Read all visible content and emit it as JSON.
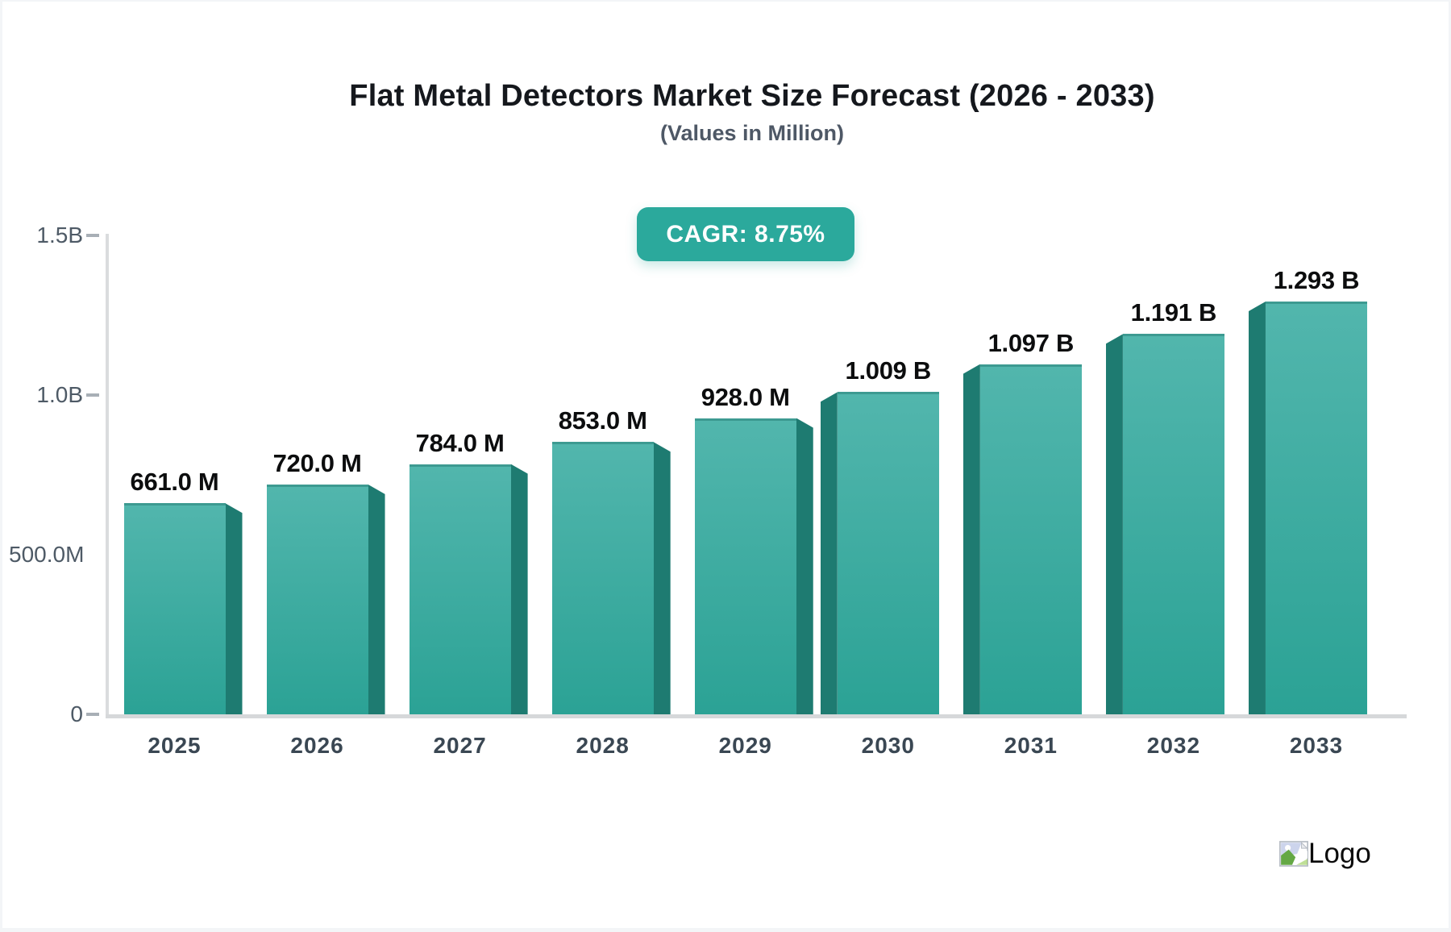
{
  "header": {
    "title": "Flat Metal Detectors Market Size Forecast (2026 - 2033)",
    "subtitle": "(Values in Million)"
  },
  "badge": {
    "label": "CAGR: 8.75%"
  },
  "footer": {
    "logo_text": "Logo",
    "logo_icon": "broken-image-icon"
  },
  "colors": {
    "accent": "#2ba99c",
    "bar_face_top": "#52b6ad",
    "bar_face_bottom": "#2ba295",
    "bar_side": "#1e7b71",
    "axis_line": "#d8dadc",
    "tick": "#a8afb6",
    "y_label_text": "#4e5a66",
    "x_label_text": "#3a4753",
    "value_label_text": "#0c0d0e",
    "title_text": "#15181d",
    "subtitle_text": "#4e5866"
  },
  "chart_data": {
    "type": "bar",
    "title": "Flat Metal Detectors Market Size Forecast (2026 - 2033)",
    "subtitle": "(Values in Million)",
    "cagr": "8.75%",
    "categories": [
      "2025",
      "2026",
      "2027",
      "2028",
      "2029",
      "2030",
      "2031",
      "2032",
      "2033"
    ],
    "values_millions": [
      661,
      720,
      784,
      853,
      928,
      1009,
      1097,
      1191,
      1293
    ],
    "value_labels": [
      "661.0 M",
      "720.0 M",
      "784.0 M",
      "853.0 M",
      "928.0 M",
      "1.009 B",
      "1.097 B",
      "1.191 B",
      "1.293 B"
    ],
    "ylim_millions": [
      0,
      1500
    ],
    "yticks": [
      {
        "label": "1.5B",
        "value_millions": 1500,
        "tick_mark": true
      },
      {
        "label": "1.0B",
        "value_millions": 1000,
        "tick_mark": true
      },
      {
        "label": "500.0M",
        "value_millions": 500,
        "tick_mark": false
      },
      {
        "label": "0",
        "value_millions": 0,
        "tick_mark": true
      }
    ],
    "grid": false,
    "legend": false,
    "bar_style": "3d-extruded, dark side face turned toward chart center"
  }
}
